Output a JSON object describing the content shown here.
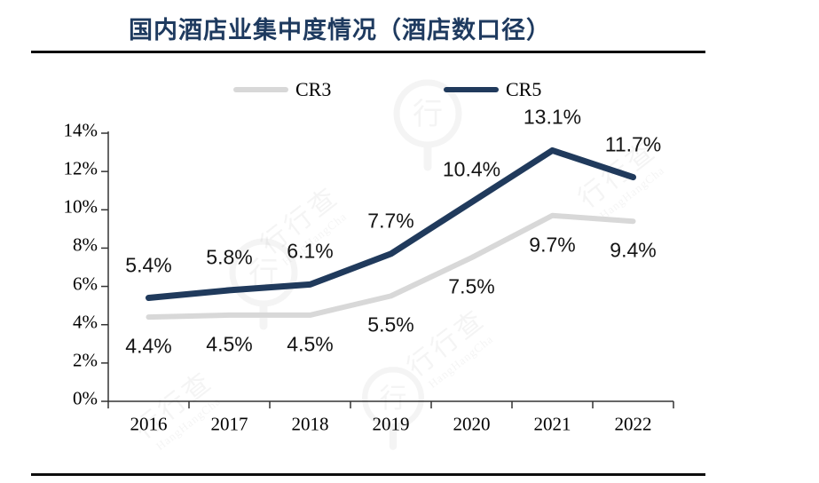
{
  "title": "国内酒店业集中度情况（酒店数口径）",
  "colors": {
    "title_navy": "#1e3a5f",
    "cr5_navy": "#203a5c",
    "cr3_gray": "#d8d8d8",
    "axis": "#333333",
    "label_text": "#141414"
  },
  "watermark": {
    "text": "行行查",
    "subtext": "HangHangCha"
  },
  "chart_data": {
    "type": "line",
    "title": "国内酒店业集中度情况（酒店数口径）",
    "categories": [
      "2016",
      "2017",
      "2018",
      "2019",
      "2020",
      "2021",
      "2022"
    ],
    "series": [
      {
        "name": "CR3",
        "color": "#d8d8d8",
        "values": [
          4.4,
          4.5,
          4.5,
          5.5,
          7.5,
          9.7,
          9.4
        ],
        "labels": [
          "4.4%",
          "4.5%",
          "4.5%",
          "5.5%",
          "7.5%",
          "9.7%",
          "9.4%"
        ],
        "label_position": "below",
        "line_width": 6
      },
      {
        "name": "CR5",
        "color": "#203a5c",
        "values": [
          5.4,
          5.8,
          6.1,
          7.7,
          10.4,
          13.1,
          11.7
        ],
        "labels": [
          "5.4%",
          "5.8%",
          "6.1%",
          "7.7%",
          "10.4%",
          "13.1%",
          "11.7%"
        ],
        "label_position": "above",
        "line_width": 7
      }
    ],
    "ylim": [
      0,
      14
    ],
    "y_ticks": [
      "0%",
      "2%",
      "4%",
      "6%",
      "8%",
      "10%",
      "12%",
      "14%"
    ],
    "xlabel": "",
    "ylabel": "",
    "grid": false,
    "legend_position": "top"
  }
}
